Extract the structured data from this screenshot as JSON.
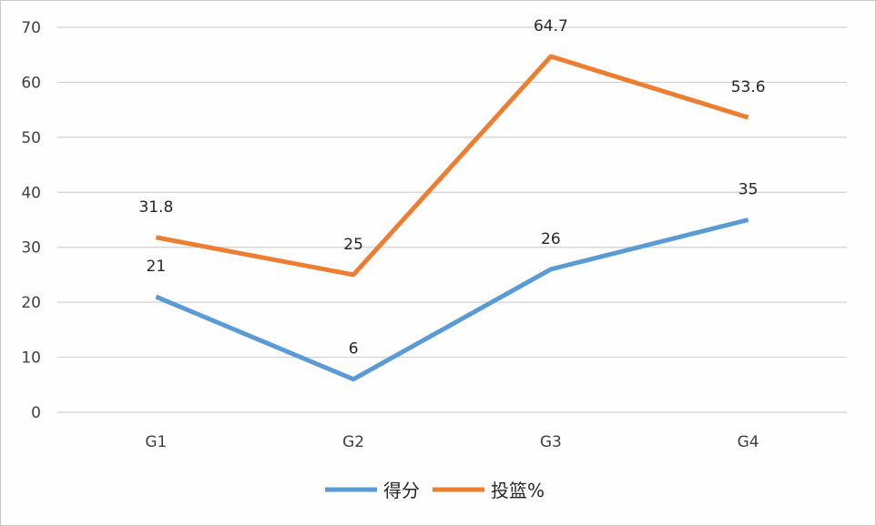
{
  "chart_data": {
    "type": "line",
    "title": "",
    "xlabel": "",
    "ylabel": "",
    "categories": [
      "G1",
      "G2",
      "G3",
      "G4"
    ],
    "series": [
      {
        "name": "得分",
        "values": [
          21,
          6,
          26,
          35
        ],
        "color": "#5B9BD5"
      },
      {
        "name": "投篮%",
        "values": [
          31.8,
          25,
          64.7,
          53.6
        ],
        "color": "#ED7D31"
      }
    ],
    "ylim": [
      0,
      70
    ],
    "yticks": [
      0,
      10,
      20,
      30,
      40,
      50,
      60,
      70
    ],
    "grid": true,
    "legend_position": "bottom",
    "data_labels": true
  }
}
